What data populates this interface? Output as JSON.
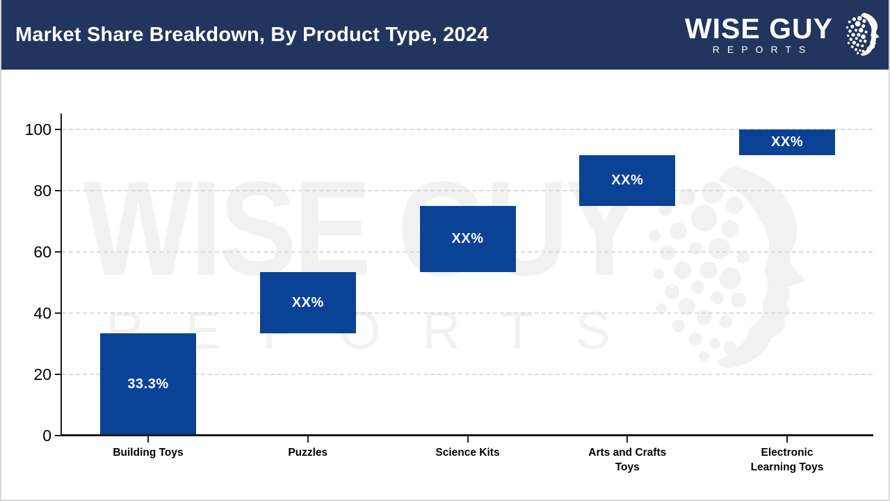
{
  "header": {
    "title": "Market Share Breakdown, By Product Type, 2024",
    "logo": {
      "line1": "WISE GUY",
      "line2": "REPORTS",
      "head_icon": "wiseguy-head-icon"
    }
  },
  "watermark": {
    "line1": "WISE GUY",
    "line2": "REPORTS",
    "head_icon": "wiseguy-head-watermark-icon"
  },
  "colors": {
    "header_bg": "#21355E",
    "bar": "#0A4296",
    "axis": "#1A1A1A",
    "grid": "#DBDBDB",
    "watermark": "#F1F1F1",
    "bar_label": "#FFFFFF",
    "frame": "#D6D6D6",
    "text": "#000000"
  },
  "chart_data": {
    "type": "bar",
    "subtype": "waterfall",
    "title": "Market Share Breakdown, By Product Type, 2024",
    "xlabel": "",
    "ylabel": "",
    "grid": "horizontal-dashed",
    "legend": "none",
    "y_ticks": [
      0,
      20,
      40,
      60,
      80,
      100
    ],
    "ylim": [
      0,
      105.5
    ],
    "categories": [
      "Building Toys",
      "Puzzles",
      "Science Kits",
      "Arts and Crafts Toys",
      "Electronic Learning Toys"
    ],
    "segments": [
      {
        "category": "Building Toys",
        "display": "Building Toys",
        "start": 0,
        "end": 33.3,
        "label": "33.3%"
      },
      {
        "category": "Puzzles",
        "display": "Puzzles",
        "start": 33.3,
        "end": 53.4,
        "label": "XX%"
      },
      {
        "category": "Science Kits",
        "display": "Science Kits",
        "start": 53.4,
        "end": 74.9,
        "label": "XX%"
      },
      {
        "category": "Arts and Crafts Toys",
        "display": "Arts and Crafts\nToys",
        "start": 74.9,
        "end": 91.6,
        "label": "XX%"
      },
      {
        "category": "Electronic Learning Toys",
        "display": "Electronic\nLearning Toys",
        "start": 91.6,
        "end": 100,
        "label": "XX%"
      }
    ]
  }
}
